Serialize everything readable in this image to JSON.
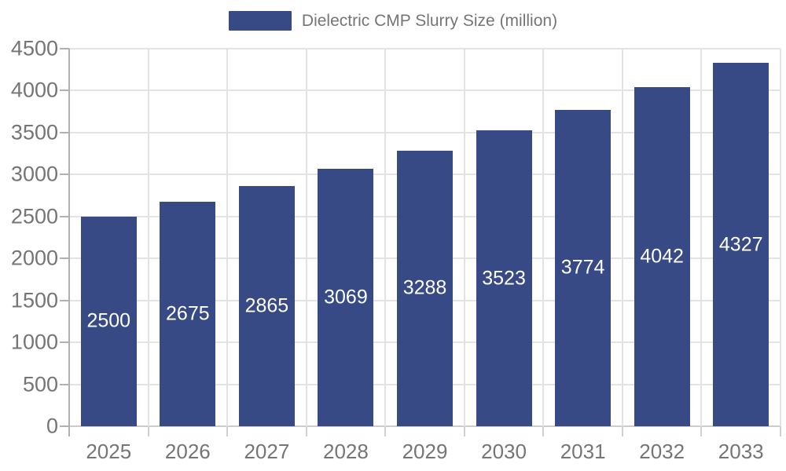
{
  "legend": {
    "label": "Dielectric CMP Slurry Size (million)"
  },
  "colors": {
    "bar": "#374a85",
    "grid": "#e3e3e3",
    "baseline": "#cccccc",
    "axis_line": "#b0b0b0",
    "x_tick": "#d0d0d0",
    "text": "#757575",
    "value_label": "#ffffff",
    "background": "#ffffff"
  },
  "chart_data": {
    "type": "bar",
    "title": "Dielectric CMP Slurry Size (million)",
    "categories": [
      "2025",
      "2026",
      "2027",
      "2028",
      "2029",
      "2030",
      "2031",
      "2032",
      "2033"
    ],
    "values": [
      2500,
      2675,
      2865,
      3069,
      3288,
      3523,
      3774,
      4042,
      4327
    ],
    "series": [
      {
        "name": "Dielectric CMP Slurry Size (million)",
        "values": [
          2500,
          2675,
          2865,
          3069,
          3288,
          3523,
          3774,
          4042,
          4327
        ]
      }
    ],
    "xlabel": "",
    "ylabel": "",
    "ylim": [
      0,
      4500
    ],
    "ytick_step": 500,
    "yticks": [
      0,
      500,
      1000,
      1500,
      2000,
      2500,
      3000,
      3500,
      4000,
      4500
    ],
    "grid": true,
    "legend_position": "top-center",
    "value_labels": "inside-middle"
  }
}
